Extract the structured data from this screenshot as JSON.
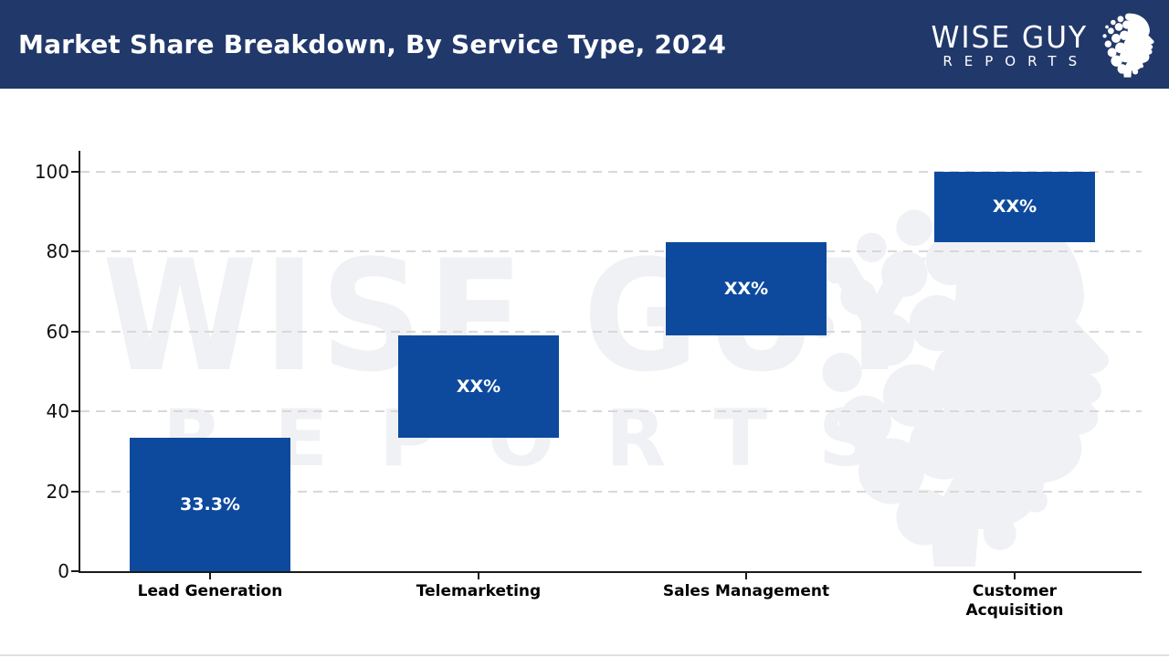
{
  "header": {
    "title": "Market Share Breakdown, By Service Type, 2024",
    "logo_line1": "WISE GUY",
    "logo_line2": "REPORTS"
  },
  "watermark": {
    "line1": "WISE GUY",
    "line2": "REPORTS"
  },
  "chart_data": {
    "type": "bar",
    "subtype": "floating-waterfall",
    "title": "Market Share Breakdown, By Service Type, 2024",
    "categories": [
      "Lead Generation",
      "Telemarketing",
      "Sales Management",
      "Customer Acquisition"
    ],
    "series": [
      {
        "name": "Market Share",
        "segments": [
          {
            "category": "Lead Generation",
            "start": 0,
            "end": 33.3,
            "label": "33.3%"
          },
          {
            "category": "Telemarketing",
            "start": 33.3,
            "end": 59,
            "label": "XX%"
          },
          {
            "category": "Sales Management",
            "start": 59,
            "end": 82.3,
            "label": "XX%"
          },
          {
            "category": "Customer Acquisition",
            "start": 82.3,
            "end": 100,
            "label": "XX%"
          }
        ]
      }
    ],
    "xlabel": "",
    "ylabel": "",
    "y_ticks": [
      0,
      20,
      40,
      60,
      80,
      100
    ],
    "ylim": [
      0,
      105
    ],
    "grid": {
      "horizontal": true,
      "style": "dashed",
      "color": "#d8d8d8"
    },
    "legend": "none",
    "colors": {
      "bar": "#0d4a9e",
      "bar_label": "#ffffff",
      "axis": "#1a1a1a",
      "tick_label": "#111111",
      "header_bg": "#21386b",
      "watermark": "#f0f1f4"
    }
  }
}
